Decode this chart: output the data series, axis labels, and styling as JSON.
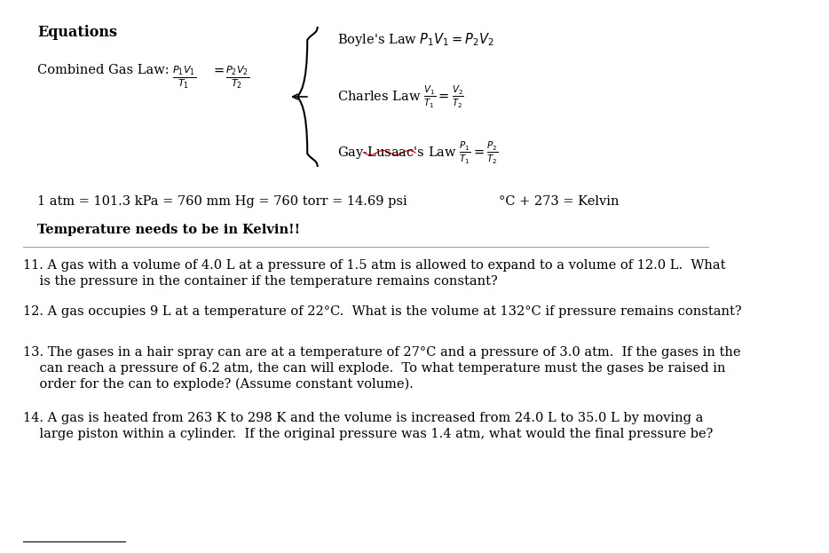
{
  "background_color": "#ffffff",
  "text_color": "#000000",
  "title": "Equations",
  "conversions": "1 atm = 101.3 kPa = 760 mm Hg = 760 torr = 14.69 psi",
  "kelvin_conversion": "°C + 273 = Kelvin",
  "temperature_note": "Temperature needs to be in Kelvin!!",
  "q11_line1": "11. A gas with a volume of 4.0 L at a pressure of 1.5 atm is allowed to expand to a volume of 12.0 L.  What",
  "q11_line2": "    is the pressure in the container if the temperature remains constant?",
  "q12": "12. A gas occupies 9 L at a temperature of 22°C.  What is the volume at 132°C if pressure remains constant?",
  "q13_line1": "13. The gases in a hair spray can are at a temperature of 27°C and a pressure of 3.0 atm.  If the gases in the",
  "q13_line2": "    can reach a pressure of 6.2 atm, the can will explode.  To what temperature must the gases be raised in",
  "q13_line3": "    order for the can to explode? (Assume constant volume).",
  "q14_line1": "14. A gas is heated from 263 K to 298 K and the volume is increased from 24.0 L to 35.0 L by moving a",
  "q14_line2": "    large piston within a cylinder.  If the original pressure was 1.4 atm, what would the final pressure be?"
}
